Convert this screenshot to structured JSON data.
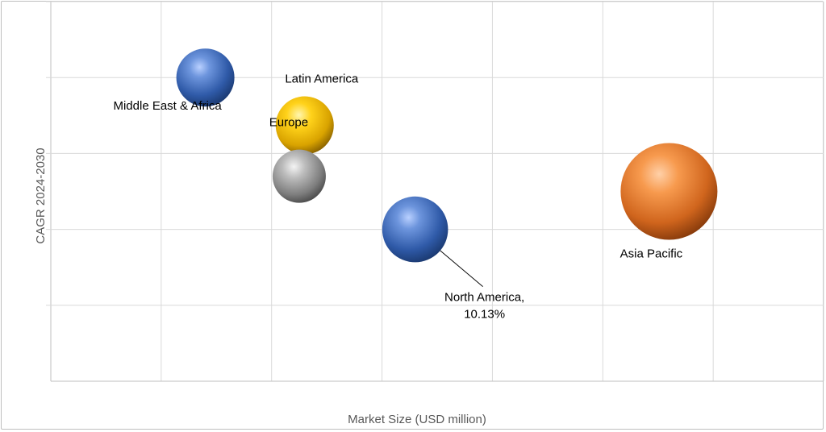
{
  "chart_data": {
    "type": "bubble",
    "xlabel": "Market Size (USD million)",
    "ylabel": "CAGR 2024-2030",
    "grid": true,
    "legend": "none",
    "x_axis": {
      "gridlines": 7,
      "tick_labels": []
    },
    "y_axis": {
      "gridlines": 5,
      "tick_labels": []
    },
    "bubbles": [
      {
        "label": "Middle East & Africa",
        "x": 1.4,
        "y": 4.0,
        "size": 0.6,
        "color": "#4472C4"
      },
      {
        "label": "Latin America",
        "x": 2.3,
        "y": 3.37,
        "size": 0.6,
        "color": "#FFC000"
      },
      {
        "label": "Europe",
        "x": 2.25,
        "y": 2.7,
        "size": 0.55,
        "color": "#A5A5A5"
      },
      {
        "label": "North America,",
        "label_value": "10.13%",
        "x": 3.3,
        "y": 2.0,
        "size": 0.68,
        "color": "#4472C4"
      },
      {
        "label": "Asia Pacific",
        "x": 5.6,
        "y": 2.5,
        "size": 1.0,
        "color": "#ED7D31"
      }
    ]
  }
}
